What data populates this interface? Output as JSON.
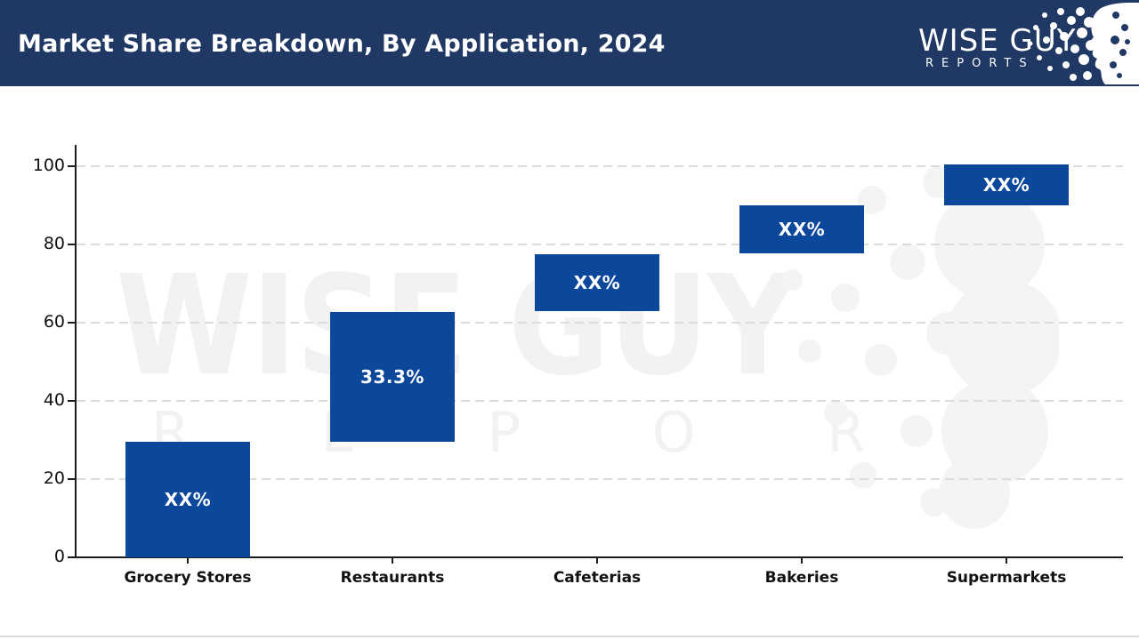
{
  "header": {
    "title": "Market Share Breakdown, By Application, 2024",
    "bg_color": "#1f3864",
    "logo": {
      "line1": "WISE GUY",
      "line2": "REPORTS"
    }
  },
  "watermark": {
    "line1": "WISE GUY",
    "line2": "R E P O R T S"
  },
  "chart_data": {
    "type": "bar",
    "subtype": "waterfall-floating-bars",
    "title": "Market Share Breakdown, By Application, 2024",
    "xlabel": "",
    "ylabel": "",
    "categories": [
      "Grocery Stores",
      "Restaurants",
      "Cafeterias",
      "Bakeries",
      "Supermarkets"
    ],
    "segments": [
      {
        "category": "Grocery Stores",
        "label": "XX%",
        "start": 0,
        "end": 29.5
      },
      {
        "category": "Restaurants",
        "label": "33.3%",
        "start": 29.5,
        "end": 62.8
      },
      {
        "category": "Cafeterias",
        "label": "XX%",
        "start": 63.0,
        "end": 77.5
      },
      {
        "category": "Bakeries",
        "label": "XX%",
        "start": 77.8,
        "end": 89.9
      },
      {
        "category": "Supermarkets",
        "label": "XX%",
        "start": 89.9,
        "end": 100.4
      }
    ],
    "yticks": [
      0,
      20,
      40,
      60,
      80,
      100
    ],
    "ylim": [
      0,
      105
    ],
    "grid": "horizontal-dashed",
    "legend": "none",
    "bar_color": "#0b479b",
    "bar_label_color": "#ffffff",
    "axis_color": "#1c1c1c",
    "grid_color": "#dcdcdc"
  }
}
